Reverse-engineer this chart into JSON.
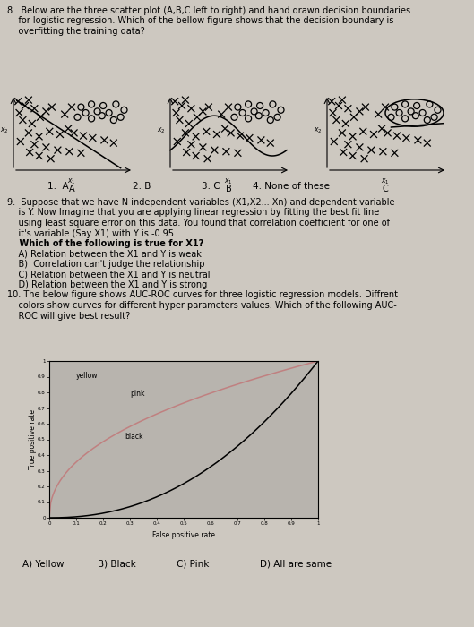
{
  "bg_color": "#cdc8c0",
  "q8_lines": [
    "8.  Below are the three scatter plot (A,B,C left to right) and hand drawn decision boundaries",
    "    for logistic regression. Which of the bellow figure shows that the decision boundary is",
    "    overfitting the training data?"
  ],
  "q8_answers": [
    "1.  A",
    "2. B",
    "3. C",
    "4. None of these"
  ],
  "q9_lines": [
    "9.  Suppose that we have N independent variables (X1,X2... Xn) and dependent variable",
    "    is Y. Now Imagine that you are applying linear regression by fitting the best fit line",
    "    using least square error on this data. You found that correlation coefficient for one of",
    "    it's variable (Say X1) with Y is -0.95."
  ],
  "q9_bold": "    Which of the following is true for X1?",
  "q9_opts": [
    "    A) Relation between the X1 and Y is weak",
    "    B)  Correlation can't judge the relationship",
    "    C) Relation between the X1 and Y is neutral",
    "    D) Relation between the X1 and Y is strong"
  ],
  "q10_lines": [
    "10. The below figure shows AUC-ROC curves for three logistic regression models. Diffrent",
    "    colors show curves for different hyper parameters values. Which of the following AUC-",
    "    ROC will give best result?"
  ],
  "q10_answers": [
    "A) Yellow",
    "B) Black",
    "C) Pink",
    "D) All are same"
  ],
  "roc_xlabel": "False positive rate",
  "roc_ylabel": "True positive rate",
  "roc_xticks": [
    0,
    0.1,
    0.2,
    0.3,
    0.4,
    0.5,
    0.6,
    0.7,
    0.8,
    0.9,
    1
  ],
  "roc_yticks": [
    0,
    0.1,
    0.2,
    0.3,
    0.4,
    0.5,
    0.6,
    0.7,
    0.8,
    0.9,
    1
  ]
}
